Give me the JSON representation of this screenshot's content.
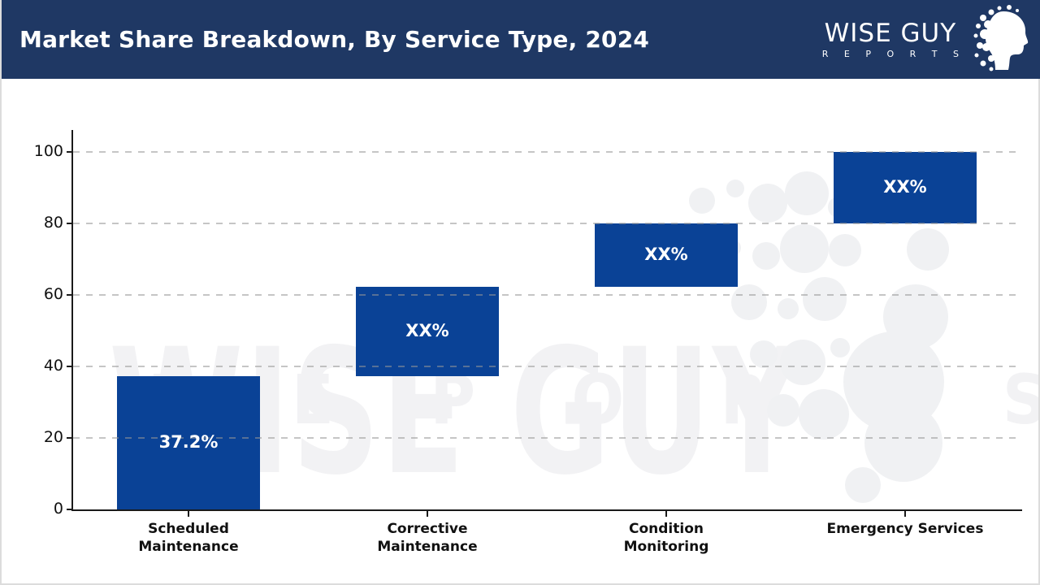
{
  "header": {
    "title": "Market Share Breakdown, By Service Type, 2024",
    "logo": {
      "name": "WISE GUY",
      "tagline": "R E P O R T S"
    }
  },
  "watermark": {
    "line1": "WISE GUY",
    "line2": "R E P O R T S"
  },
  "chart_data": {
    "type": "bar",
    "variant": "waterfall",
    "title": "Market Share Breakdown, By Service Type, 2024",
    "categories": [
      "Scheduled Maintenance",
      "Corrective Maintenance",
      "Condition Monitoring",
      "Emergency Services"
    ],
    "category_lines": [
      [
        "Scheduled",
        "Maintenance"
      ],
      [
        "Corrective",
        "Maintenance"
      ],
      [
        "Condition",
        "Monitoring"
      ],
      [
        "Emergency Services"
      ]
    ],
    "segments": [
      {
        "category": "Scheduled Maintenance",
        "start": 0,
        "end": 37.2,
        "label": "37.2%"
      },
      {
        "category": "Corrective Maintenance",
        "start": 37.2,
        "end": 62.3,
        "label": "XX%"
      },
      {
        "category": "Condition Monitoring",
        "start": 62.3,
        "end": 80.1,
        "label": "XX%"
      },
      {
        "category": "Emergency Services",
        "start": 80.1,
        "end": 100,
        "label": "XX%"
      }
    ],
    "yticks": [
      0,
      20,
      40,
      60,
      80,
      100
    ],
    "ylim": [
      0,
      105.5
    ],
    "xlabel": "",
    "ylabel": "",
    "grid": {
      "horizontal": true,
      "style": "dashed"
    },
    "legend": "none",
    "bar_color": "#0a4296",
    "bar_label_color": "#ffffff"
  },
  "colors": {
    "header_bg": "#1f3864",
    "bar": "#0a4296",
    "axis": "#1a1a1a",
    "watermark": "#f2f2f4",
    "page_border": "#dcdcdc"
  }
}
